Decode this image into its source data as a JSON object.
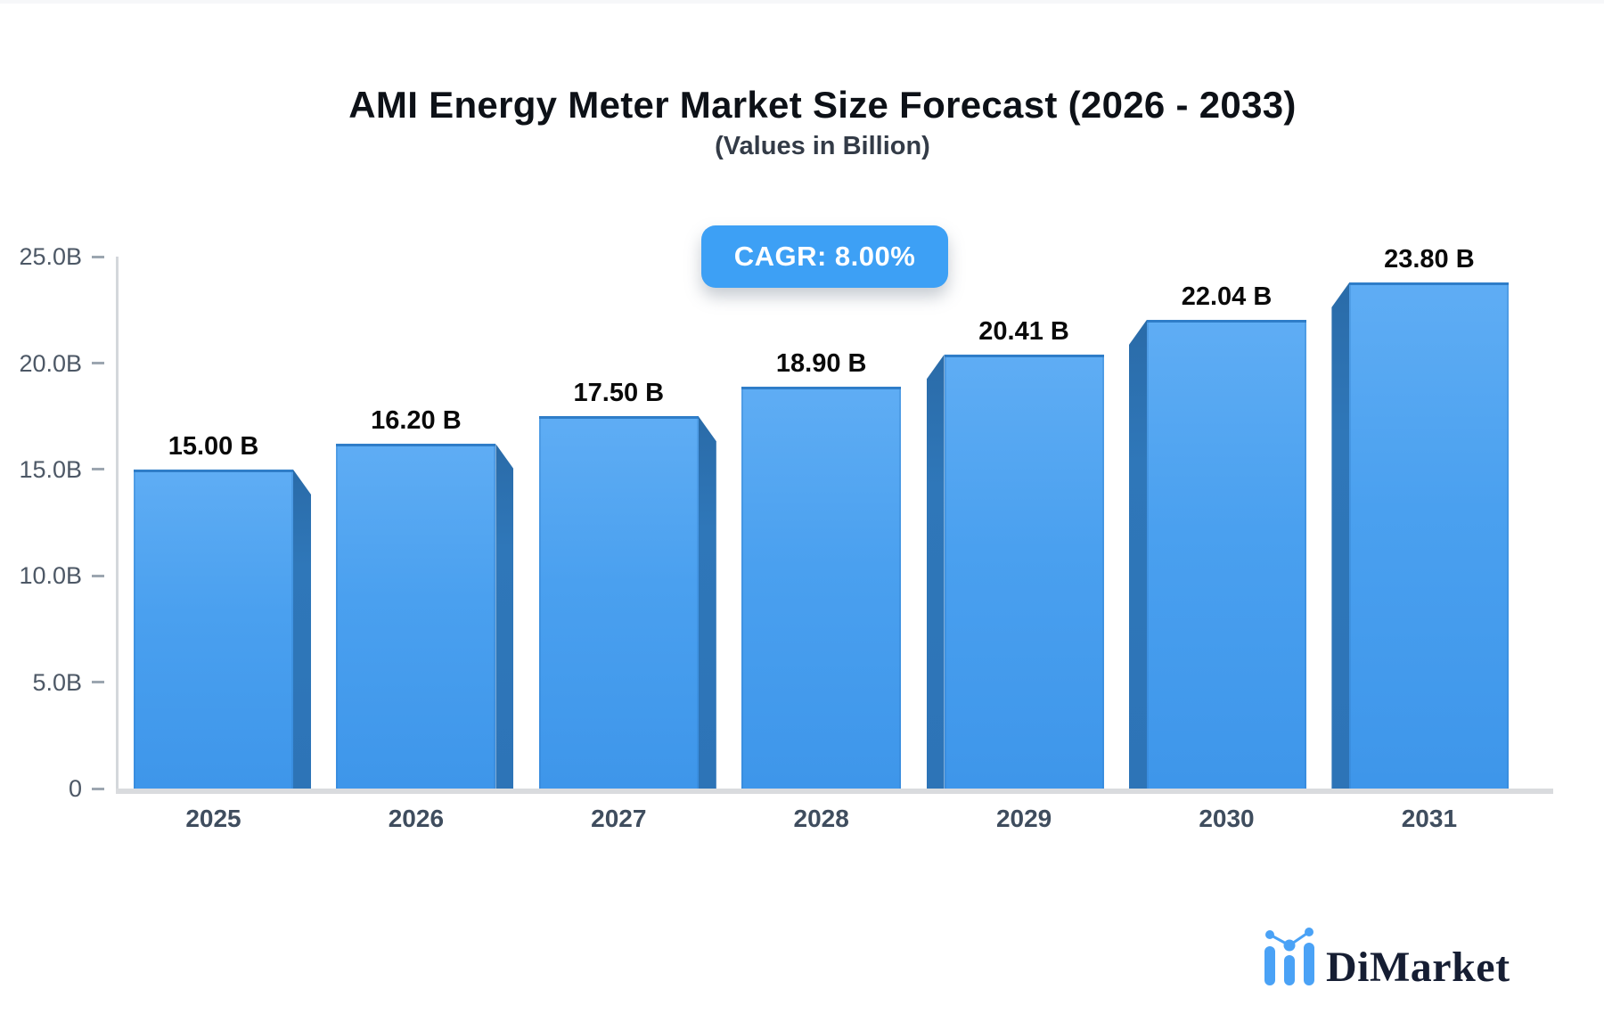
{
  "header": {
    "title": "AMI Energy Meter Market Size Forecast (2026 - 2033)",
    "subtitle": "(Values in Billion)"
  },
  "badge": {
    "label": "CAGR: 8.00%"
  },
  "chart_data": {
    "type": "bar",
    "title": "AMI Energy Meter Market Size Forecast (2026 - 2033)",
    "subtitle": "(Values in Billion)",
    "annotation": "CAGR: 8.00%",
    "categories": [
      "2025",
      "2026",
      "2027",
      "2028",
      "2029",
      "2030",
      "2031"
    ],
    "values": [
      15.0,
      16.2,
      17.5,
      18.9,
      20.41,
      22.04,
      23.8
    ],
    "bar_labels": [
      "15.00 B",
      "16.20 B",
      "17.50 B",
      "18.90 B",
      "20.41 B",
      "22.04 B",
      "23.80 B"
    ],
    "y_ticks": [
      {
        "value": 0,
        "label": "0"
      },
      {
        "value": 5,
        "label": "5.0B"
      },
      {
        "value": 10,
        "label": "10.0B"
      },
      {
        "value": 15,
        "label": "15.0B"
      },
      {
        "value": 20,
        "label": "20.0B"
      },
      {
        "value": 25,
        "label": "25.0B"
      }
    ],
    "ylim": [
      0,
      25
    ],
    "xlabel": "",
    "ylabel": "",
    "grid": false,
    "legend": "none",
    "style": "3d-bars, sides beveled toward center bar",
    "colors": {
      "bar_face_top": "#5fadf4",
      "bar_face_bottom": "#3e96ea",
      "bar_side": "#2d74b7",
      "badge_bg": "#3da0f5",
      "axis_line": "#d4d7db",
      "baseline": "#d9dbde",
      "tick_label": "#4d5866",
      "x_label": "#3f4d5e",
      "value_label": "#0a0a0a",
      "title": "#0d1117"
    }
  },
  "logo": {
    "text": "DiMarket",
    "icon": "bar-line-chart-icon",
    "icon_color": "#4aa2f6",
    "text_color": "#161e33"
  }
}
